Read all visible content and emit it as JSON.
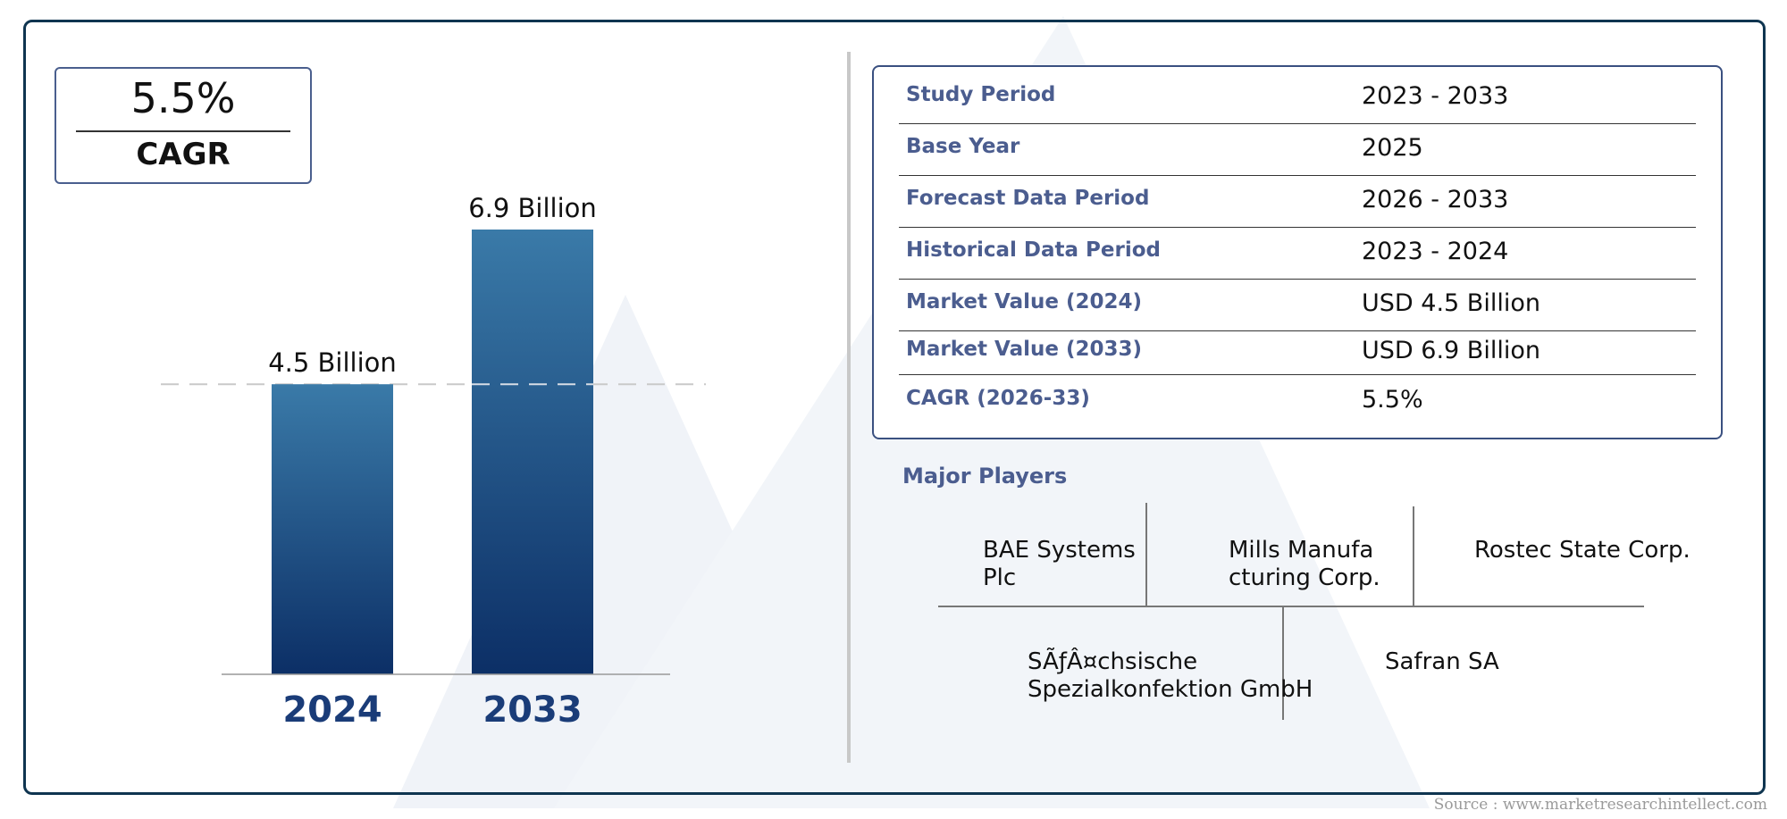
{
  "cagr_box": {
    "value": "5.5%",
    "label": "CAGR"
  },
  "chart_data": {
    "type": "bar",
    "categories": [
      "2024",
      "2033"
    ],
    "values": [
      4.5,
      6.9
    ],
    "data_labels": [
      "4.5 Billion",
      "6.9 Billion"
    ],
    "title": "",
    "xlabel": "",
    "ylabel": "",
    "grid": false,
    "reference_line": "dashed line at 2024 value",
    "colors": {
      "bar_top": "#3a7aa8",
      "bar_bottom": "#0c2f66",
      "axis_label": "#1a3c78"
    }
  },
  "info_table": {
    "rows": [
      {
        "key": "Study Period",
        "value": "2023 - 2033"
      },
      {
        "key": "Base Year",
        "value": "2025"
      },
      {
        "key": "Forecast Data Period",
        "value": "2026 - 2033"
      },
      {
        "key": "Historical Data Period",
        "value": "2023 - 2024"
      },
      {
        "key": "Market Value (2024)",
        "value": "USD 4.5 Billion"
      },
      {
        "key": "Market Value (2033)",
        "value": "USD 6.9 Billion"
      },
      {
        "key": "CAGR (2026-33)",
        "value": "5.5%"
      }
    ]
  },
  "major_players": {
    "title": "Major Players",
    "players": [
      "BAE Systems Plc",
      "Mills Manufacturing Corp.",
      "Rostec State Corp.",
      "SÃƒÂ¤chsische Spezialkonfektion GmbH",
      "Safran SA"
    ]
  },
  "source": "Source : www.marketresearchintellect.com",
  "colors": {
    "frame": "#0f3550",
    "accent_text": "#4b5d8f",
    "watermark": "#eef1f6"
  }
}
